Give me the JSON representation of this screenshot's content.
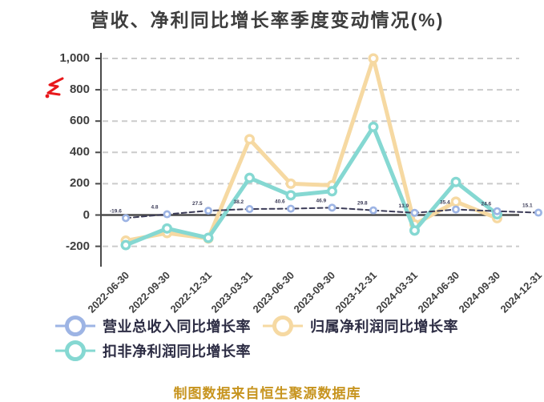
{
  "title": "营收、净利同比增长率季度变动情况(%)",
  "watermark": "制图数据来自恒生聚源数据库",
  "colors": {
    "background": "#ffffff",
    "title_text": "#3d3d3d",
    "axis": "#4a4a4a",
    "grid": "#cbcbcb",
    "axis_label_text": "#3f3f3f",
    "legend_text": "#2d2d44",
    "watermark_gold": "#c7941f",
    "red_mark": "#e8191c",
    "revenue_series": "#9db4e4",
    "revenue_line": "#3c3c58",
    "net_profit_series": "#f6d9a2",
    "non_gaap_series": "#85d8d2"
  },
  "y_axis": {
    "tick_labels": [
      "1,000",
      "800",
      "600",
      "400",
      "200",
      "0",
      "-200"
    ]
  },
  "chart_data": {
    "type": "line",
    "unit": "%",
    "title": "营收、净利同比增长率季度变动情况(%)",
    "categories": [
      "2022-06-30",
      "2022-09-30",
      "2022-12-31",
      "2023-03-31",
      "2023-06-30",
      "2023-09-30",
      "2023-12-31",
      "2024-03-31",
      "2024-06-30",
      "2024-09-30",
      "2024-12-31"
    ],
    "y_tick_values": [
      1000,
      800,
      600,
      400,
      200,
      0,
      -200
    ],
    "ylim": [
      -280,
      1070
    ],
    "grid": "horizontal-dashed",
    "legend_position": "bottom-left",
    "series": [
      {
        "name": "营业总收入同比增长率",
        "marker_color": "#9db4e4",
        "line_color": "#3c3c58",
        "line_style": "dashed",
        "show_value_labels": true,
        "values": [
          -19.6,
          4.8,
          27.5,
          38.2,
          40.6,
          46.9,
          29.8,
          13.9,
          35.4,
          24.6,
          15.1
        ]
      },
      {
        "name": "归属净利润同比增长率",
        "marker_color": "#f6d9a2",
        "line_color": "#f6d9a2",
        "line_style": "solid",
        "show_value_labels": false,
        "values": [
          -164,
          -115,
          -150,
          484,
          200,
          190,
          1000,
          -60,
          85,
          -20,
          null
        ]
      },
      {
        "name": "扣非净利润同比增长率",
        "marker_color": "#85d8d2",
        "line_color": "#85d8d2",
        "line_style": "solid",
        "show_value_labels": false,
        "values": [
          -192,
          -86,
          -146,
          237,
          126,
          152,
          563,
          -99,
          211,
          5,
          null
        ]
      }
    ]
  }
}
